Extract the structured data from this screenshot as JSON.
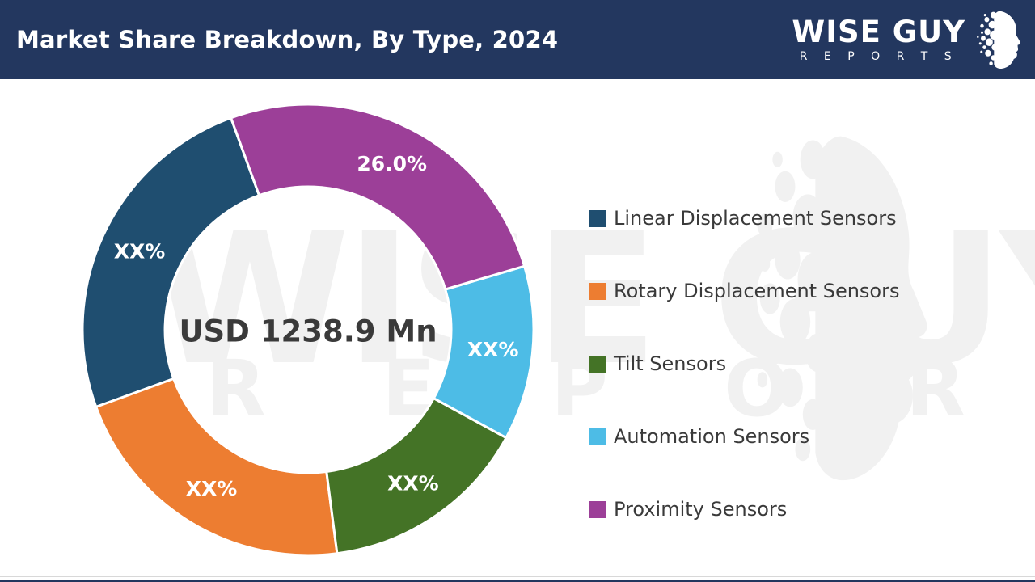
{
  "header": {
    "title": "Market Share Breakdown, By Type, 2024",
    "logo": {
      "line1": "WISE GUY",
      "line2": "R E P O R T S"
    }
  },
  "watermark": {
    "line1": "WISE GUY",
    "line2": "R E P O R T S"
  },
  "chart_data": {
    "type": "pie",
    "subtype": "donut",
    "title": "Market Share Breakdown, By Type, 2024",
    "center_label": "USD 1238.9 Mn",
    "start_angle_deg": 110,
    "direction": "counterclockwise",
    "inner_radius_ratio": 0.635,
    "legend_position": "right",
    "series": [
      {
        "name": "Linear Displacement Sensors",
        "value_pct": 25.0,
        "display_label": "XX%",
        "color": "#1f4e70"
      },
      {
        "name": "Rotary Displacement Sensors",
        "value_pct": 21.5,
        "display_label": "XX%",
        "color": "#ed7d31"
      },
      {
        "name": "Tilt Sensors",
        "value_pct": 15.0,
        "display_label": "XX%",
        "color": "#447326"
      },
      {
        "name": "Automation Sensors",
        "value_pct": 12.5,
        "display_label": "XX%",
        "color": "#4dbce6"
      },
      {
        "name": "Proximity Sensors",
        "value_pct": 26.0,
        "display_label": "26.0%",
        "color": "#9c3f98"
      }
    ]
  },
  "colors": {
    "header_bg": "#23375f",
    "text_dark": "#3a3a3a",
    "watermark_gray": "#f1f1f1",
    "footer_rule": "#d8d8d8"
  }
}
